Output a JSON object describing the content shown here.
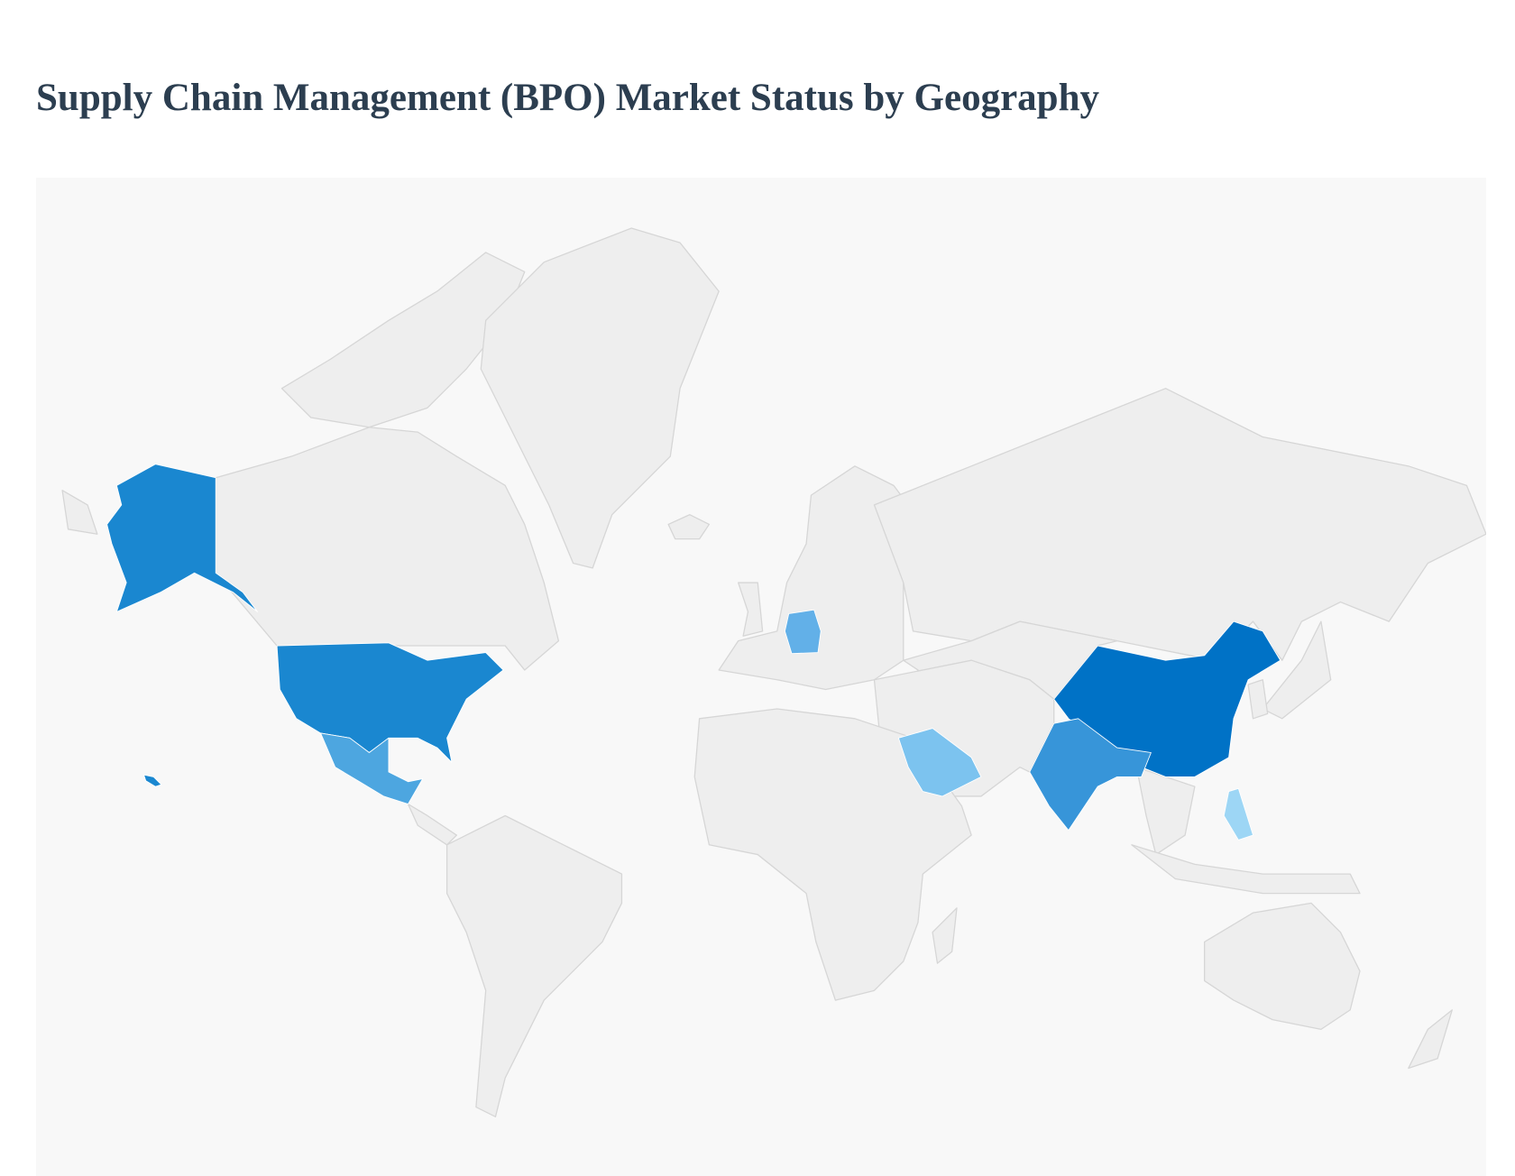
{
  "title": "Supply Chain Management (BPO) Market Status by Geography",
  "chart_data": {
    "type": "map",
    "title": "Supply Chain Management (BPO) Market Status by Geography",
    "projection": "world",
    "default_fill": "#eeeeee",
    "background": "#f8f8f8",
    "highlighted_regions": [
      {
        "name": "China",
        "color": "#0072c6"
      },
      {
        "name": "United States",
        "color": "#1a87d0"
      },
      {
        "name": "India",
        "color": "#3795d9"
      },
      {
        "name": "Mexico",
        "color": "#4da6e0"
      },
      {
        "name": "Germany",
        "color": "#62b0e8"
      },
      {
        "name": "Saudi Arabia",
        "color": "#7cc3ef"
      },
      {
        "name": "Philippines",
        "color": "#9dd6f5"
      }
    ]
  }
}
